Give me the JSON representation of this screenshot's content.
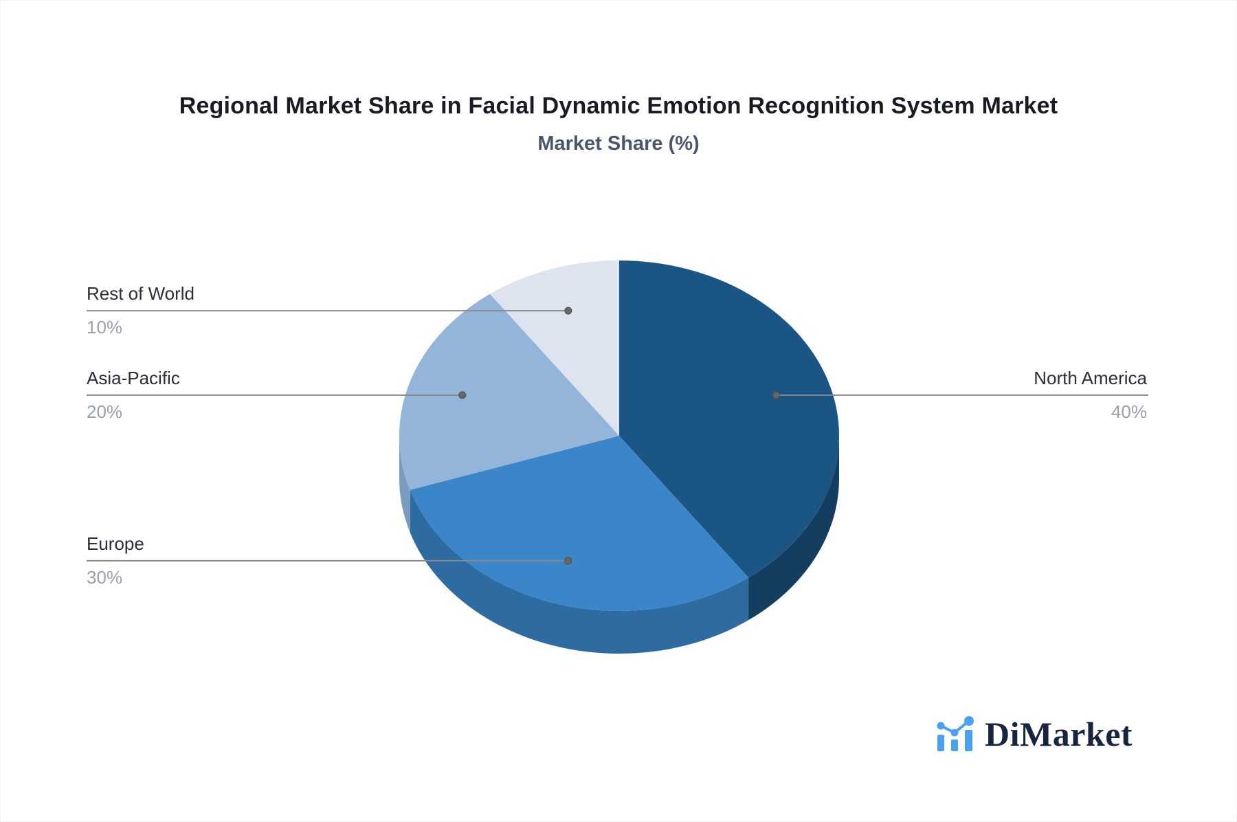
{
  "title": "Regional Market Share in Facial Dynamic Emotion Recognition System Market",
  "subtitle": "Market Share (%)",
  "brand": {
    "name": "DiMarket",
    "icon": "bar-line-chart-icon",
    "icon_color": "#4ba1f1",
    "text_color": "#182540"
  },
  "chart_data": {
    "type": "pie",
    "style": "3d",
    "unit": "%",
    "title": "Regional Market Share in Facial Dynamic Emotion Recognition System Market",
    "subtitle": "Market Share (%)",
    "start_angle_deg": 0,
    "direction": "clockwise",
    "legend_position": "none",
    "series": [
      {
        "name": "North America",
        "value": 40,
        "pct_label": "40%",
        "label_side": "right",
        "color_top": "#1a5584",
        "color_side": "#133e60"
      },
      {
        "name": "Europe",
        "value": 30,
        "pct_label": "30%",
        "label_side": "left",
        "color_top": "#3a86c8",
        "color_side": "#2d6ba0"
      },
      {
        "name": "Asia-Pacific",
        "value": 20,
        "pct_label": "20%",
        "label_side": "left",
        "color_top": "#93b5d9",
        "color_side": "#7b9cbf"
      },
      {
        "name": "Rest of World",
        "value": 10,
        "pct_label": "10%",
        "label_side": "left",
        "color_top": "#dde4ef",
        "color_side": "#b9c4d6"
      }
    ],
    "leader_line_color": "#8a8a8a",
    "leader_dot_color": "#676767",
    "label_color": "#2b2e36",
    "pct_color": "#9aa0a8"
  }
}
